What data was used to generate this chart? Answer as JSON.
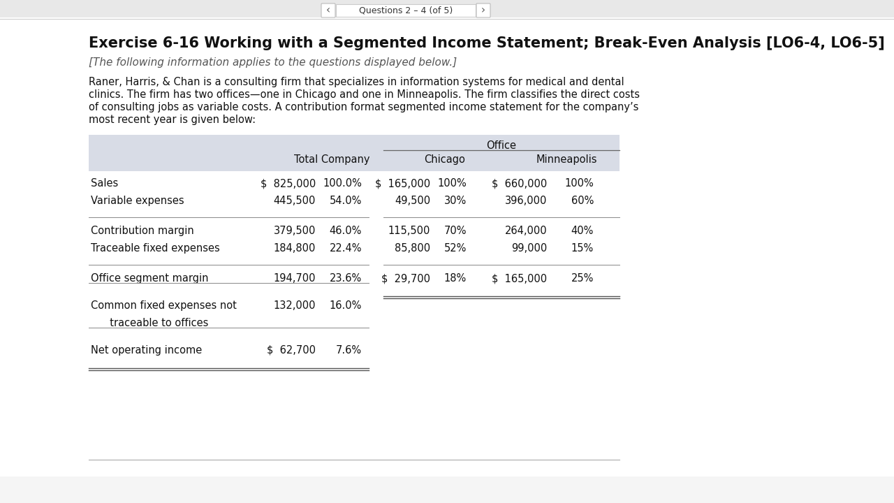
{
  "title": "Exercise 6-16 Working with a Segmented Income Statement; Break-Even Analysis [LO6-4, LO6-5]",
  "subtitle": "[The following information applies to the questions displayed below.]",
  "body_line1": "Raner, Harris, & Chan is a consulting firm that specializes in information systems for medical and dental",
  "body_line2": "clinics. The firm has two offices—one in Chicago and one in Minneapolis. The firm classifies the direct costs",
  "body_line3": "of consulting jobs as variable costs. A contribution format segmented income statement for the company’s",
  "body_line4": "most recent year is given below:",
  "bg_color": "#f5f5f5",
  "page_bg": "#ffffff",
  "header_bg": "#d8dce6",
  "nav_bg": "#e8e8e8",
  "nav_text": "Questions 2 – 4 (of 5)",
  "col_group_label": "Office",
  "col_tc": "Total Company",
  "col_ch": "Chicago",
  "col_mn": "Minneapolis",
  "rows": [
    {
      "label": "Sales",
      "tc_val": "$  825,000",
      "tc_pct": "100.0%",
      "ch_val": "$  165,000",
      "ch_pct": "100%",
      "mn_val": "$  660,000",
      "mn_pct": "100%",
      "sep_before": false,
      "double_after": false
    },
    {
      "label": "Variable expenses",
      "tc_val": "445,500",
      "tc_pct": "54.0%",
      "ch_val": "49,500",
      "ch_pct": "30%",
      "mn_val": "396,000",
      "mn_pct": "60%",
      "sep_before": false,
      "double_after": true
    },
    {
      "label": "Contribution margin",
      "tc_val": "379,500",
      "tc_pct": "46.0%",
      "ch_val": "115,500",
      "ch_pct": "70%",
      "mn_val": "264,000",
      "mn_pct": "40%",
      "sep_before": false,
      "double_after": false
    },
    {
      "label": "Traceable fixed expenses",
      "tc_val": "184,800",
      "tc_pct": "22.4%",
      "ch_val": "85,800",
      "ch_pct": "52%",
      "mn_val": "99,000",
      "mn_pct": "15%",
      "sep_before": false,
      "double_after": true
    },
    {
      "label": "Office segment margin",
      "tc_val": "194,700",
      "tc_pct": "23.6%",
      "ch_val": "$  29,700",
      "ch_pct": "18%",
      "mn_val": "$  165,000",
      "mn_pct": "25%",
      "sep_before": false,
      "double_after": false
    },
    {
      "label": "Common fixed expenses not\n  traceable to offices",
      "tc_val": "132,000",
      "tc_pct": "16.0%",
      "ch_val": "",
      "ch_pct": "",
      "mn_val": "",
      "mn_pct": "",
      "sep_before": true,
      "double_after": false
    },
    {
      "label": "Net operating income",
      "tc_val": "$  62,700",
      "tc_pct": "7.6%",
      "ch_val": "",
      "ch_pct": "",
      "mn_val": "",
      "mn_pct": "",
      "sep_before": true,
      "double_after": false
    }
  ]
}
